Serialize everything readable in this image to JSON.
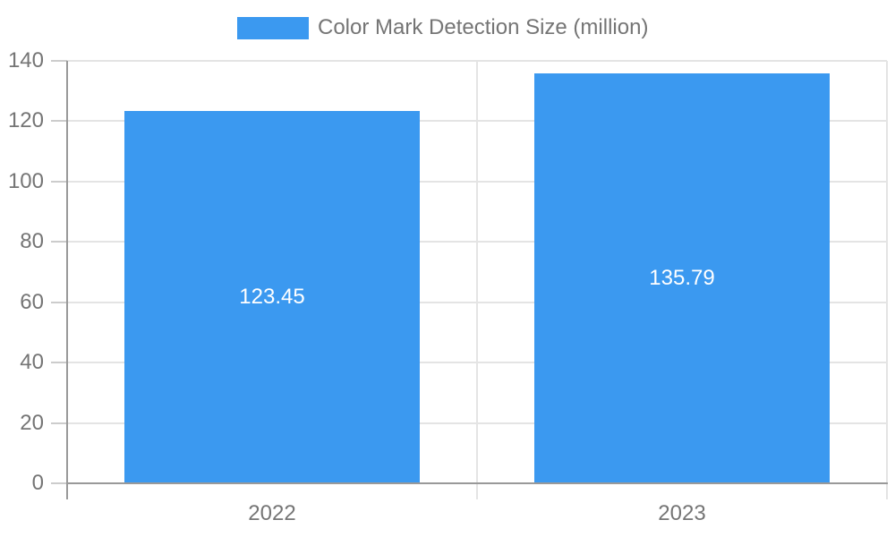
{
  "chart_data": {
    "type": "bar",
    "legend": {
      "label": "Color Mark Detection Size (million)"
    },
    "categories": [
      "2022",
      "2023"
    ],
    "series": [
      {
        "name": "Color Mark Detection Size (million)",
        "values": [
          123.45,
          135.79
        ]
      }
    ],
    "value_labels": [
      "123.45",
      "135.79"
    ],
    "ylim": [
      0,
      140
    ],
    "yticks": [
      0,
      20,
      40,
      60,
      80,
      100,
      120,
      140
    ],
    "grid": true,
    "legend_position": "top-center",
    "colors": {
      "bar": "#3B99F0",
      "text": "#757575",
      "value_label": "#ffffff",
      "axis": "#999999",
      "gridline": "#e4e4e4",
      "tick": "#cccccc",
      "background": "#ffffff"
    }
  }
}
